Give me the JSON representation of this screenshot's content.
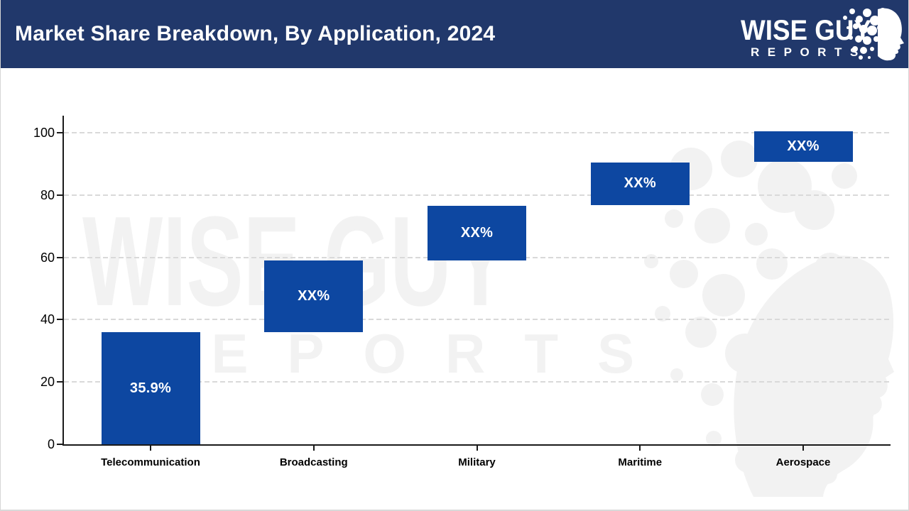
{
  "header": {
    "title": "Market Share Breakdown, By Application, 2024",
    "bg_color": "#21386b",
    "text_color": "#ffffff",
    "logo": {
      "line1": "WISE GUY",
      "line2": "REPORTS"
    }
  },
  "watermark": {
    "line1": "WISE GUY",
    "line2": "REPORTS",
    "color": "#f2f2f2"
  },
  "chart_data": {
    "type": "bar",
    "subtype": "waterfall",
    "title": "Market Share Breakdown, By Application, 2024",
    "categories": [
      "Telecommunication",
      "Broadcasting",
      "Military",
      "Maritime",
      "Aerospace"
    ],
    "segments": [
      {
        "category": "Telecommunication",
        "start": 0,
        "end": 35.9,
        "label": "35.9%"
      },
      {
        "category": "Broadcasting",
        "start": 35.9,
        "end": 59.0,
        "label": "XX%"
      },
      {
        "category": "Military",
        "start": 59.0,
        "end": 76.6,
        "label": "XX%"
      },
      {
        "category": "Maritime",
        "start": 76.8,
        "end": 90.4,
        "label": "XX%"
      },
      {
        "category": "Aerospace",
        "start": 90.6,
        "end": 100.4,
        "label": "XX%"
      }
    ],
    "y_ticks": [
      0,
      20,
      40,
      60,
      80,
      100
    ],
    "ylim": [
      0,
      105
    ],
    "xlabel": "",
    "ylabel": "",
    "grid": "horizontal-dashed",
    "legend": "none",
    "bar_color": "#0d47a1",
    "bar_label_color": "#ffffff",
    "axis_color": "#1a1a1a",
    "grid_color": "#d9d9d9",
    "tick_label_color": "#000000"
  }
}
